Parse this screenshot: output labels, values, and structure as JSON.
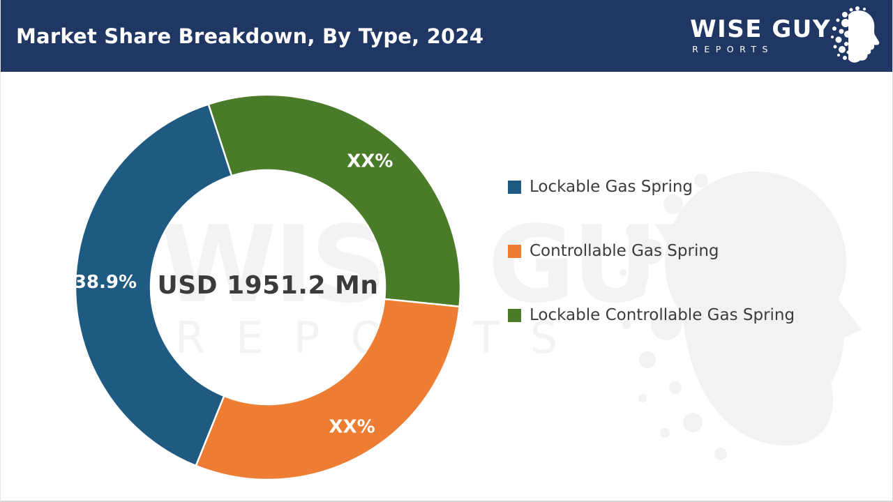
{
  "header": {
    "title": "Market Share Breakdown, By Type, 2024",
    "logo": {
      "line1": "WISE GUY",
      "line2": "REPORTS"
    }
  },
  "watermark": {
    "line1": "WISE GUY",
    "line2": "REPORTS"
  },
  "chart_data": {
    "type": "pie",
    "subtype": "donut",
    "title": "Market Share Breakdown, By Type, 2024",
    "center_text": "USD 1951.2 Mn",
    "start_angle_deg": -18,
    "direction": "clockwise",
    "inner_radius_ratio": 0.61,
    "slices": [
      {
        "name": "Lockable Controllable Gas Spring",
        "display_label": "XX%",
        "value_pct_est": 31.6,
        "color": "#4a7b29"
      },
      {
        "name": "Controllable Gas Spring",
        "display_label": "XX%",
        "value_pct_est": 29.5,
        "color": "#ec7d33"
      },
      {
        "name": "Lockable Gas Spring",
        "display_label": "38.9%",
        "value_pct_est": 38.9,
        "color": "#1f5a82"
      }
    ],
    "legend": {
      "position": "right",
      "items": [
        {
          "label": "Lockable Gas Spring",
          "color": "#1f5a82"
        },
        {
          "label": "Controllable Gas Spring",
          "color": "#ec7d33"
        },
        {
          "label": "Lockable Controllable Gas Spring",
          "color": "#4a7b29"
        }
      ]
    }
  },
  "colors": {
    "header_bg": "#203763",
    "text_dark": "#3b3b3b",
    "watermark": "#f2f2f2",
    "slice_label_text": "#ffffff"
  }
}
